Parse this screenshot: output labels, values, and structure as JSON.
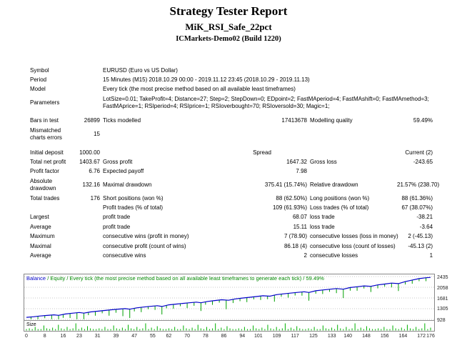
{
  "header": {
    "title": "Strategy Tester Report",
    "subtitle": "MiK_RSI_Safe_22pct",
    "server": "ICMarkets-Demo02 (Build 1220)"
  },
  "report": {
    "rows": [
      {
        "type": "info",
        "label": "Symbol",
        "value": "EURUSD (Euro vs US Dollar)"
      },
      {
        "type": "info",
        "label": "Period",
        "value": "15 Minutes (M15) 2018.10.29 00:00 - 2019.11.12 23:45 (2018.10.29 - 2019.11.13)"
      },
      {
        "type": "info",
        "label": "Model",
        "value": "Every tick (the most precise method based on all available least timeframes)"
      },
      {
        "type": "info",
        "label": "Parameters",
        "value": "LotSize=0.01; TakeProfit=4; Distance=27; Step=2; StepDown=0; EDpoint=2; FastMAperiod=4; FastMAshift=0; FastMAmethod=3; FastMAprice=1; RSIperiod=4; RSIprice=1; RSIoverbought=70; RSIoversold=30; Magic=1;"
      },
      {
        "type": "spacer"
      },
      {
        "type": "stats",
        "cells": [
          "Bars in test",
          "26899",
          "Ticks modelled",
          "17413678",
          "Modelling quality",
          "59.49%"
        ]
      },
      {
        "type": "stats",
        "cells": [
          "Mismatched charts errors",
          "15",
          "",
          "",
          "",
          ""
        ]
      },
      {
        "type": "spacer"
      },
      {
        "type": "stats",
        "center": [
          3
        ],
        "cells": [
          "Initial deposit",
          "1000.00",
          "",
          "Spread",
          "",
          "Current (2)"
        ]
      },
      {
        "type": "stats",
        "cells": [
          "Total net profit",
          "1403.67",
          "Gross profit",
          "1647.32",
          "Gross loss",
          "-243.65"
        ]
      },
      {
        "type": "stats",
        "cells": [
          "Profit factor",
          "6.76",
          "Expected payoff",
          "7.98",
          "",
          ""
        ]
      },
      {
        "type": "stats",
        "cells": [
          "Absolute drawdown",
          "132.16",
          "Maximal drawdown",
          "375.41 (15.74%)",
          "Relative drawdown",
          "21.57% (238.70)"
        ]
      },
      {
        "type": "stats",
        "cells": [
          "Total trades",
          "176",
          "Short positions (won %)",
          "88 (62.50%)",
          "Long positions (won %)",
          "88 (61.36%)"
        ]
      },
      {
        "type": "stats",
        "cells": [
          "",
          "",
          "Profit trades (% of total)",
          "109 (61.93%)",
          "Loss trades (% of total)",
          "67 (38.07%)"
        ]
      },
      {
        "type": "stats",
        "cells": [
          "Largest",
          "",
          "profit trade",
          "68.07",
          "loss trade",
          "-38.21"
        ]
      },
      {
        "type": "stats",
        "cells": [
          "Average",
          "",
          "profit trade",
          "15.11",
          "loss trade",
          "-3.64"
        ]
      },
      {
        "type": "stats",
        "cells": [
          "Maximum",
          "",
          "consecutive wins (profit in money)",
          "7 (78.90)",
          "consecutive losses (loss in money)",
          "2 (-45.13)"
        ]
      },
      {
        "type": "stats",
        "cells": [
          "Maximal",
          "",
          "consecutive profit (count of wins)",
          "86.18 (4)",
          "consecutive loss (count of losses)",
          "-45.13 (2)"
        ]
      },
      {
        "type": "stats",
        "cells": [
          "Average",
          "",
          "consecutive wins",
          "2",
          "consecutive losses",
          "1"
        ]
      }
    ]
  },
  "graph": {
    "size_label": "Size",
    "caption": {
      "separator": " / ",
      "parts": [
        "Balance",
        "Equity",
        "Every tick (the most precise method based on all available least timeframes to generate each tick)",
        "59.49%"
      ]
    }
  },
  "chart_data": {
    "type": "line",
    "title": "Balance / Equity",
    "y_ticks": [
      2435,
      2058,
      1681,
      1305,
      928
    ],
    "x_ticks": [
      0,
      8,
      16,
      23,
      31,
      39,
      47,
      55,
      62,
      70,
      78,
      86,
      94,
      101,
      109,
      117,
      125,
      133,
      140,
      148,
      156,
      164,
      172,
      176
    ],
    "y_range": [
      928,
      2435
    ],
    "x_range": [
      0,
      176
    ],
    "grid": "horizontal-dotted",
    "equity_color": "#00A000",
    "size_color": "#00B000",
    "series": [
      {
        "name": "Balance",
        "color": "#0000C8",
        "points": [
          [
            0,
            1000
          ],
          [
            3,
            1022
          ],
          [
            6,
            1048
          ],
          [
            9,
            1068
          ],
          [
            12,
            1088
          ],
          [
            14,
            1072
          ],
          [
            17,
            1120
          ],
          [
            20,
            1146
          ],
          [
            23,
            1172
          ],
          [
            25,
            1150
          ],
          [
            28,
            1192
          ],
          [
            31,
            1218
          ],
          [
            34,
            1242
          ],
          [
            37,
            1268
          ],
          [
            40,
            1290
          ],
          [
            43,
            1308
          ],
          [
            45,
            1288
          ],
          [
            48,
            1336
          ],
          [
            51,
            1362
          ],
          [
            54,
            1388
          ],
          [
            57,
            1410
          ],
          [
            59,
            1382
          ],
          [
            62,
            1440
          ],
          [
            65,
            1465
          ],
          [
            68,
            1490
          ],
          [
            71,
            1512
          ],
          [
            74,
            1536
          ],
          [
            76,
            1514
          ],
          [
            79,
            1562
          ],
          [
            82,
            1590
          ],
          [
            85,
            1618
          ],
          [
            88,
            1600
          ],
          [
            91,
            1650
          ],
          [
            94,
            1678
          ],
          [
            97,
            1705
          ],
          [
            100,
            1732
          ],
          [
            103,
            1760
          ],
          [
            106,
            1744
          ],
          [
            109,
            1800
          ],
          [
            112,
            1826
          ],
          [
            115,
            1852
          ],
          [
            118,
            1878
          ],
          [
            121,
            1900
          ],
          [
            123,
            1876
          ],
          [
            126,
            1934
          ],
          [
            129,
            1962
          ],
          [
            132,
            1988
          ],
          [
            135,
            2012
          ],
          [
            138,
            1990
          ],
          [
            141,
            2048
          ],
          [
            144,
            2076
          ],
          [
            147,
            2105
          ],
          [
            150,
            2092
          ],
          [
            153,
            2140
          ],
          [
            156,
            2172
          ],
          [
            159,
            2205
          ],
          [
            162,
            2186
          ],
          [
            165,
            2256
          ],
          [
            168,
            2312
          ],
          [
            171,
            2362
          ],
          [
            174,
            2392
          ],
          [
            176,
            2403.67
          ]
        ]
      }
    ],
    "equity_spikes": [
      [
        2,
        140
      ],
      [
        5,
        220
      ],
      [
        8,
        90
      ],
      [
        11,
        180
      ],
      [
        14,
        300
      ],
      [
        16,
        120
      ],
      [
        19,
        160
      ],
      [
        22,
        240
      ],
      [
        25,
        330
      ],
      [
        27,
        100
      ],
      [
        30,
        150
      ],
      [
        33,
        90
      ],
      [
        36,
        200
      ],
      [
        39,
        120
      ],
      [
        42,
        260
      ],
      [
        45,
        310
      ],
      [
        47,
        110
      ],
      [
        50,
        170
      ],
      [
        53,
        90
      ],
      [
        56,
        140
      ],
      [
        59,
        280
      ],
      [
        61,
        100
      ],
      [
        64,
        150
      ],
      [
        67,
        90
      ],
      [
        70,
        180
      ],
      [
        73,
        120
      ],
      [
        76,
        290
      ],
      [
        78,
        100
      ],
      [
        81,
        140
      ],
      [
        84,
        90
      ],
      [
        87,
        320
      ],
      [
        90,
        130
      ],
      [
        93,
        100
      ],
      [
        96,
        160
      ],
      [
        99,
        90
      ],
      [
        102,
        140
      ],
      [
        105,
        110
      ],
      [
        108,
        230
      ],
      [
        111,
        90
      ],
      [
        114,
        150
      ],
      [
        117,
        100
      ],
      [
        120,
        130
      ],
      [
        123,
        290
      ],
      [
        126,
        100
      ],
      [
        129,
        140
      ],
      [
        132,
        90
      ],
      [
        135,
        160
      ],
      [
        138,
        310
      ],
      [
        141,
        110
      ],
      [
        144,
        140
      ],
      [
        147,
        90
      ],
      [
        150,
        200
      ],
      [
        153,
        120
      ],
      [
        156,
        90
      ],
      [
        159,
        150
      ],
      [
        162,
        260
      ],
      [
        165,
        100
      ],
      [
        168,
        130
      ],
      [
        171,
        90
      ],
      [
        174,
        120
      ]
    ],
    "size_bar_pattern": [
      2,
      3,
      2,
      5,
      2,
      2,
      7,
      3,
      2,
      4,
      2,
      8,
      3,
      2,
      5,
      2,
      3,
      10,
      2,
      4,
      2,
      6,
      3,
      2
    ],
    "size_bar_count": 140
  }
}
